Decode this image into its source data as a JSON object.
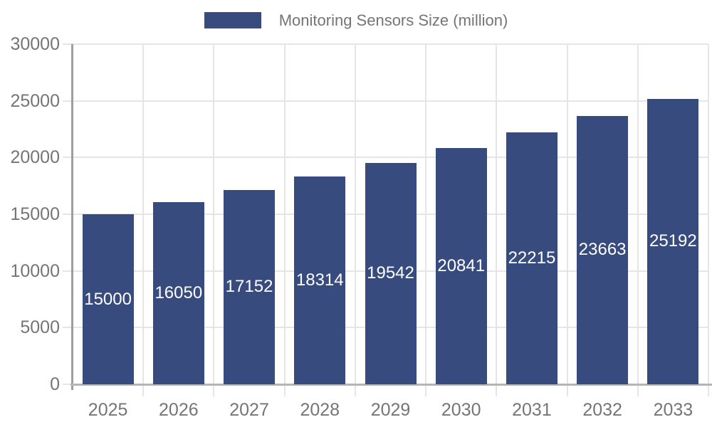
{
  "chart_data": {
    "type": "bar",
    "title": "Monitoring Sensors Size (million)",
    "categories": [
      "2025",
      "2026",
      "2027",
      "2028",
      "2029",
      "2030",
      "2031",
      "2032",
      "2033"
    ],
    "values": [
      15000,
      16050,
      17152,
      18314,
      19542,
      20841,
      22215,
      23663,
      25192
    ],
    "xlabel": "",
    "ylabel": "",
    "ylim": [
      0,
      30000
    ],
    "yticks": [
      0,
      5000,
      10000,
      15000,
      20000,
      25000,
      30000
    ],
    "grid": true,
    "legend_position": "top",
    "colors": {
      "bar": "#374B7E",
      "value_label": "#FFFFFF",
      "axis_text": "#757575",
      "legend_text": "#757575",
      "grid_line": "#E5E5E5",
      "x_axis_line": "#B5B5B5",
      "y_axis_line": "#9E9E9E"
    }
  }
}
